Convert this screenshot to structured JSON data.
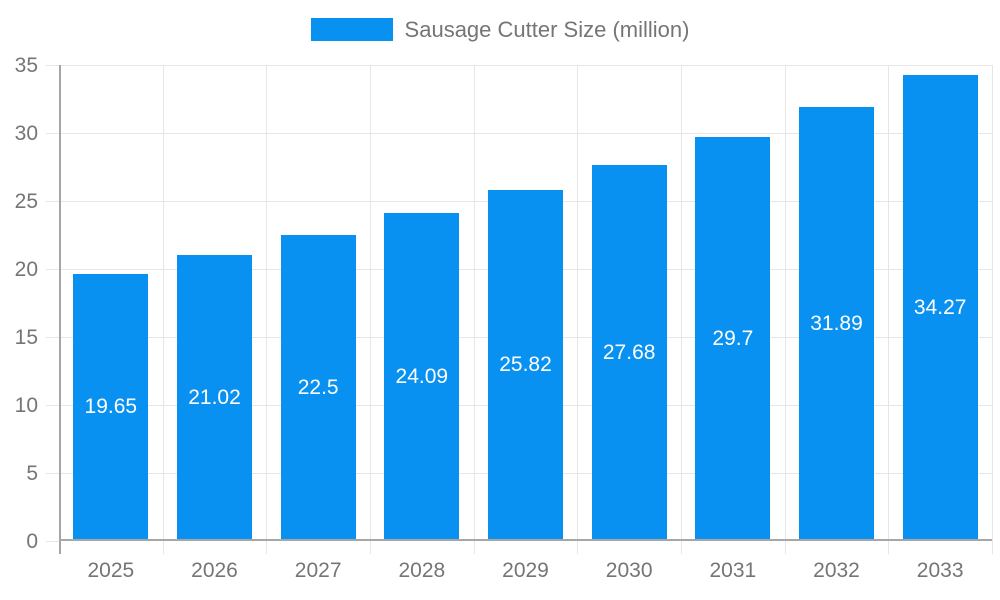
{
  "chart_data": {
    "type": "bar",
    "title": "Sausage Cutter Size (million)",
    "legend": {
      "position": "top",
      "label": "Sausage Cutter Size (million)"
    },
    "categories": [
      "2025",
      "2026",
      "2027",
      "2028",
      "2029",
      "2030",
      "2031",
      "2032",
      "2033"
    ],
    "values": [
      19.65,
      21.02,
      22.5,
      24.09,
      25.82,
      27.68,
      29.7,
      31.89,
      34.27
    ],
    "value_labels": [
      "19.65",
      "21.02",
      "22.5",
      "24.09",
      "25.82",
      "27.68",
      "29.7",
      "31.89",
      "34.27"
    ],
    "xlabel": "",
    "ylabel": "",
    "ylim": [
      0,
      35
    ],
    "ytick_step": 5,
    "ytick_labels": [
      "0",
      "5",
      "10",
      "15",
      "20",
      "25",
      "30",
      "35"
    ],
    "grid": true,
    "colors": {
      "bar": "#0991f2",
      "axis_text": "#757575",
      "grid_line": "#e6e6e6",
      "axis_line": "#a6a6a6",
      "value_label": "#ffffff",
      "background": "#ffffff"
    }
  }
}
